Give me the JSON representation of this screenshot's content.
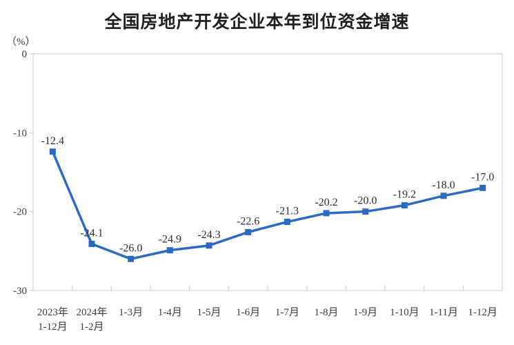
{
  "chart_data": {
    "type": "line",
    "title": "全国房地产开发企业本年到位资金增速",
    "unit_label": "（%）",
    "categories": [
      [
        "2023年",
        "1-12月"
      ],
      [
        "2024年",
        "1-2月"
      ],
      [
        "1-3月"
      ],
      [
        "1-4月"
      ],
      [
        "1-5月"
      ],
      [
        "1-6月"
      ],
      [
        "1-7月"
      ],
      [
        "1-8月"
      ],
      [
        "1-9月"
      ],
      [
        "1-10月"
      ],
      [
        "1-11月"
      ],
      [
        "1-12月"
      ]
    ],
    "values": [
      -12.4,
      -24.1,
      -26.0,
      -24.9,
      -24.3,
      -22.6,
      -21.3,
      -20.2,
      -20.0,
      -19.2,
      -18.0,
      -17.0
    ],
    "data_labels": [
      "-12.4",
      "-24.1",
      "-26.0",
      "-24.9",
      "-24.3",
      "-22.6",
      "-21.3",
      "-20.2",
      "-20.0",
      "-19.2",
      "-18.0",
      "-17.0"
    ],
    "ylim": [
      -30,
      0
    ],
    "yticks": [
      0,
      -10,
      -20,
      -30
    ],
    "ytick_labels": [
      "0",
      "-10",
      "-20",
      "-30"
    ],
    "grid": false,
    "legend": "none",
    "marker": "square",
    "colors": {
      "line": "#2a6ac5",
      "marker": "#2a6ac5",
      "axis": "#c8c8c8",
      "tick_text": "#3c3c3c",
      "label_text": "#2e2e2e",
      "title_text": "#1f1f1f",
      "background": "#ffffff"
    }
  }
}
